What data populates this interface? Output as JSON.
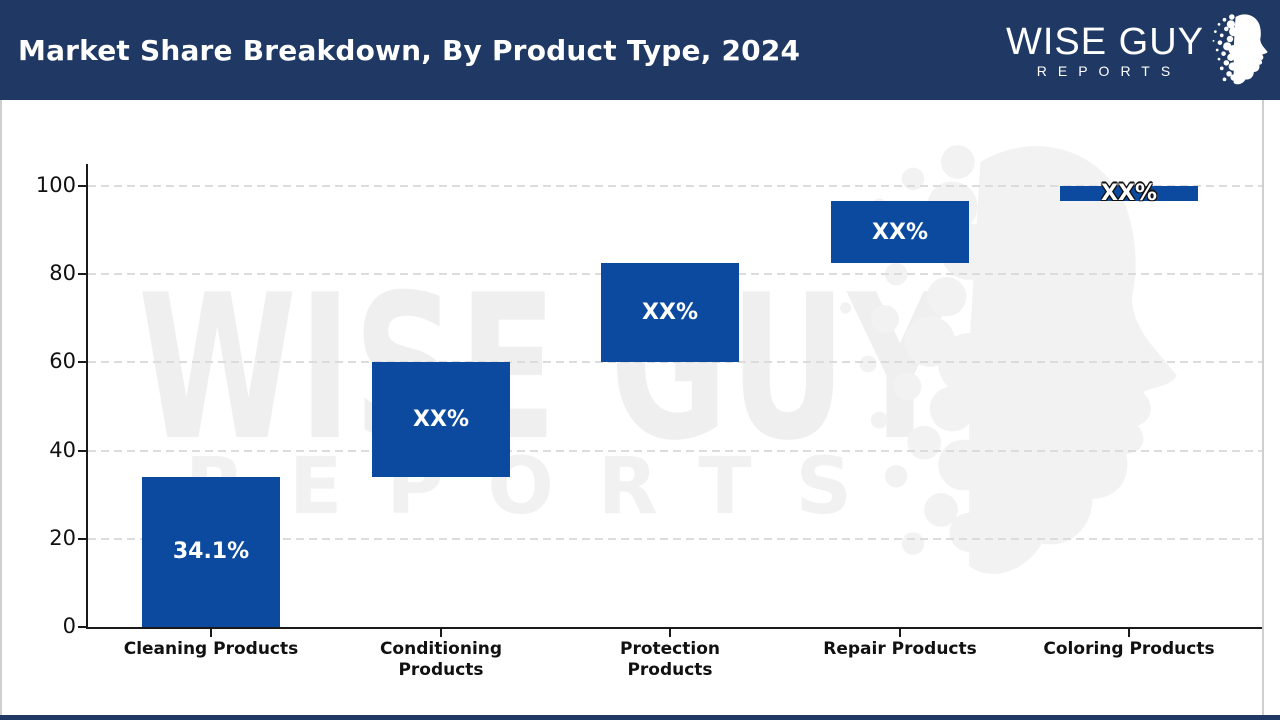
{
  "header": {
    "title": "Market Share Breakdown, By Product Type, 2024",
    "logo": {
      "name": "WISE GUY",
      "sub": "REPORTS"
    }
  },
  "watermark": {
    "big": "WISE GUY",
    "sub": "REPORTS"
  },
  "colors": {
    "header_bg": "#1f3864",
    "bar_blue": "#0b4a9e",
    "grid_gray": "#dcdcdc",
    "axis_black": "#1a1a1a",
    "watermark_gray": "#efefef"
  },
  "chart_data": {
    "type": "bar",
    "subtype": "waterfall",
    "title": "Market Share Breakdown, By Product Type, 2024",
    "categories": [
      "Cleaning Products",
      "Conditioning Products",
      "Protection Products",
      "Repair Products",
      "Coloring Products"
    ],
    "category_label_lines": [
      [
        "Cleaning Products"
      ],
      [
        "Conditioning",
        "Products"
      ],
      [
        "Protection",
        "Products"
      ],
      [
        "Repair Products"
      ],
      [
        "Coloring Products"
      ]
    ],
    "segments": [
      {
        "category": "Cleaning Products",
        "start": 0,
        "end": 34.1,
        "label": "34.1%"
      },
      {
        "category": "Conditioning Products",
        "start": 34.1,
        "end": 60,
        "label": "XX%"
      },
      {
        "category": "Protection Products",
        "start": 60,
        "end": 82.5,
        "label": "XX%"
      },
      {
        "category": "Repair Products",
        "start": 82.5,
        "end": 96.5,
        "label": "XX%"
      },
      {
        "category": "Coloring Products",
        "start": 96.5,
        "end": 100,
        "label": "XX%"
      }
    ],
    "values": [
      34.1,
      25.9,
      22.5,
      14,
      3.5
    ],
    "y_ticks": [
      0,
      20,
      40,
      60,
      80,
      100
    ],
    "ylim": [
      0,
      105
    ],
    "grid": "dashed horizontal, behind bars",
    "legend": "none"
  }
}
